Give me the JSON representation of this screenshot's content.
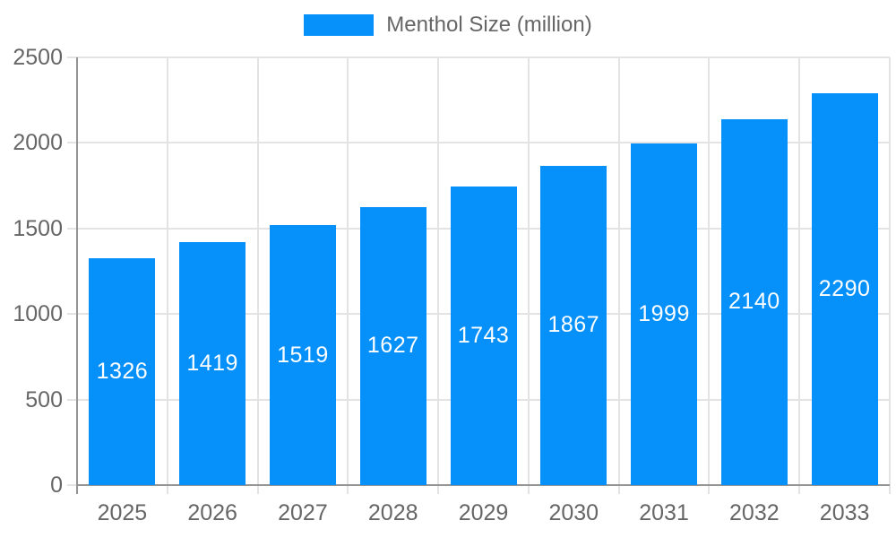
{
  "legend": {
    "label": "Menthol Size (million)"
  },
  "chart_data": {
    "type": "bar",
    "title": "",
    "series_name": "Menthol Size (million)",
    "categories": [
      "2025",
      "2026",
      "2027",
      "2028",
      "2029",
      "2030",
      "2031",
      "2032",
      "2033"
    ],
    "values": [
      1326,
      1419,
      1519,
      1627,
      1743,
      1867,
      1999,
      2140,
      2290
    ],
    "xlabel": "",
    "ylabel": "",
    "ylim": [
      0,
      2500
    ],
    "yticks": [
      0,
      500,
      1000,
      1500,
      2000,
      2500
    ],
    "grid": true,
    "legend_position": "top",
    "value_labels": "centered-white-inside-bars"
  },
  "colors": {
    "bar": "#0690fa",
    "value_label": "#ffffff",
    "grid_line": "#e3e3e3",
    "axis_line": "#949494",
    "text": "#666666",
    "background": "#ffffff"
  }
}
